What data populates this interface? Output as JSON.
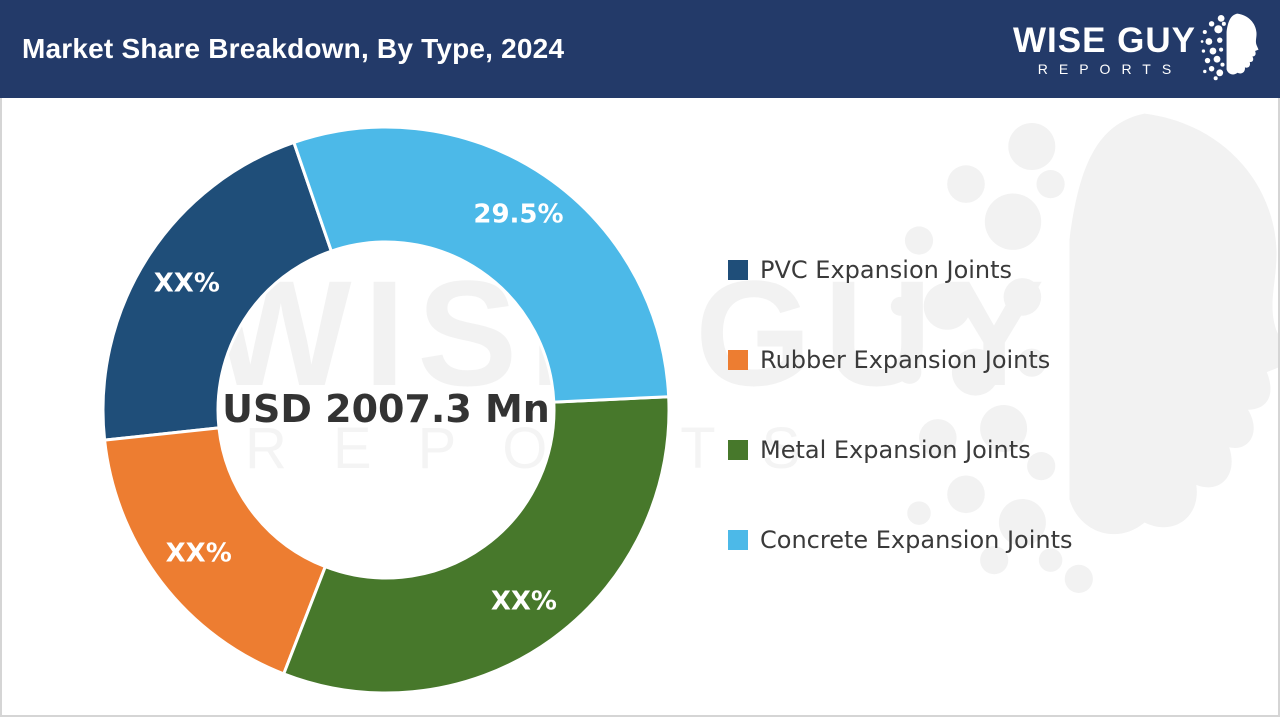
{
  "header": {
    "title": "Market Share Breakdown, By Type, 2024",
    "logo": {
      "line1": "WISE GUY",
      "line2": "REPORTS"
    }
  },
  "watermark": {
    "line1": "WISE GUY",
    "line2": "REPORTS"
  },
  "colors": {
    "header_bg": "#233a69",
    "center_text": "#333333",
    "legend_text": "#3a3a3a",
    "slice_gap": "#ffffff",
    "border": "#d5d5d5"
  },
  "chart_data": {
    "type": "pie",
    "subtype": "donut",
    "title": "Market Share Breakdown, By Type, 2024",
    "center_label": "USD 2007.3 Mn",
    "legend_position": "right",
    "direction": "counterclockwise",
    "start_angle_deg_from_top": -19,
    "values_note": "PVC/Rubber/Metal printed labels are XX%; their values are estimated from arc angles. Concrete is labeled 29.5%.",
    "segments": [
      {
        "name": "PVC Expansion Joints",
        "label": "XX%",
        "value": 21.4,
        "color": "#1f4e79"
      },
      {
        "name": "Rubber Expansion Joints",
        "label": "XX%",
        "value": 17.4,
        "color": "#ed7d31"
      },
      {
        "name": "Metal Expansion Joints",
        "label": "XX%",
        "value": 31.6,
        "color": "#47782b"
      },
      {
        "name": "Concrete Expansion Joints",
        "label": "29.5%",
        "value": 29.5,
        "color": "#4cb9e8"
      }
    ]
  }
}
